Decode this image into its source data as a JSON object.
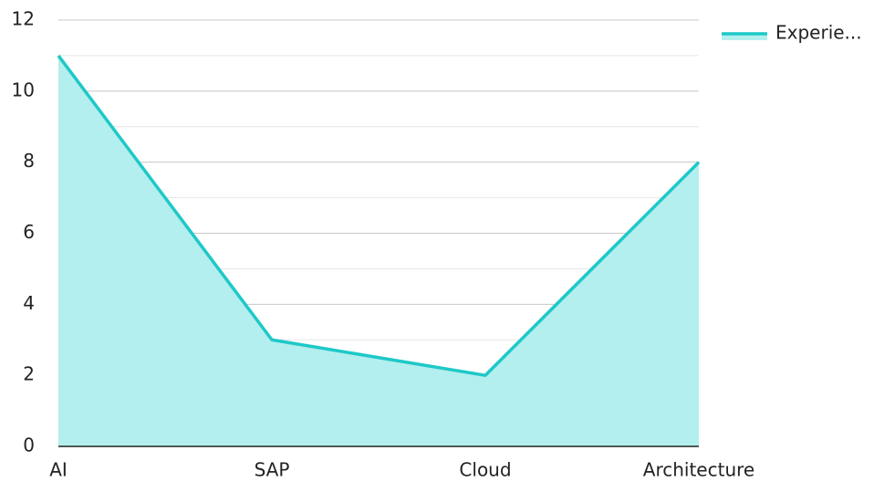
{
  "chart_data": {
    "type": "area",
    "categories": [
      "AI",
      "SAP",
      "Cloud",
      "Architecture"
    ],
    "series": [
      {
        "name": "Experie...",
        "color": "#1fc8c8",
        "fill": "#b2efee",
        "values": [
          11,
          3,
          2,
          8
        ]
      }
    ],
    "ylim": [
      0,
      12
    ],
    "yticks": [
      0,
      2,
      4,
      6,
      8,
      10,
      12
    ],
    "grid": true,
    "minor_grid": true,
    "legend": "top-right"
  }
}
